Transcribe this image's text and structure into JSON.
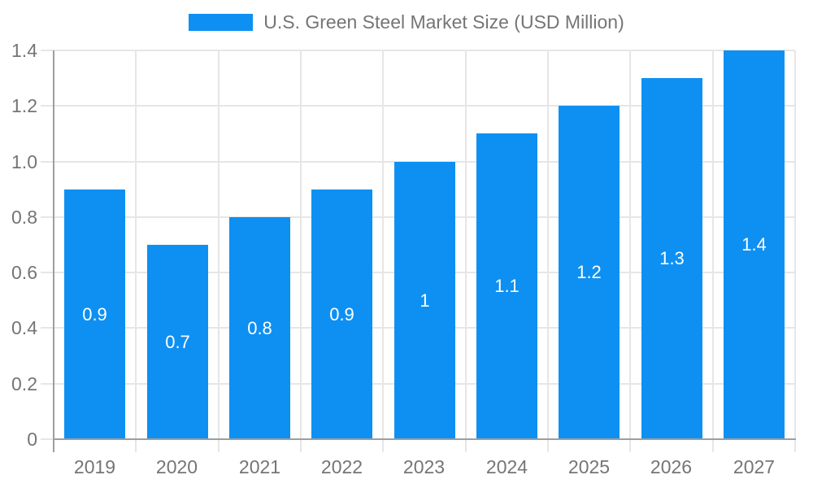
{
  "chart_data": {
    "type": "bar",
    "title": "U.S. Green Steel Market Size (USD Million)",
    "categories": [
      "2019",
      "2020",
      "2021",
      "2022",
      "2023",
      "2024",
      "2025",
      "2026",
      "2027"
    ],
    "values": [
      0.9,
      0.7,
      0.8,
      0.9,
      1,
      1.1,
      1.2,
      1.3,
      1.4
    ],
    "bar_labels": [
      "0.9",
      "0.7",
      "0.8",
      "0.9",
      "1",
      "1.1",
      "1.2",
      "1.3",
      "1.4"
    ],
    "xlabel": "",
    "ylabel": "",
    "ylim": [
      0,
      1.4
    ],
    "y_tick_step": 0.2,
    "y_tick_labels": [
      "0",
      "0.2",
      "0.4",
      "0.6",
      "0.8",
      "1.0",
      "1.2",
      "1.4"
    ],
    "grid": true,
    "legend_position": "top",
    "colors": {
      "bar": "#0E90F2",
      "bar_label_text": "#FFFFFF",
      "axis_line": "#9E9E9E",
      "gridline": "#E6E6E6",
      "tick_text": "#757575",
      "legend_text": "#757575",
      "background": "#FFFFFF"
    }
  }
}
